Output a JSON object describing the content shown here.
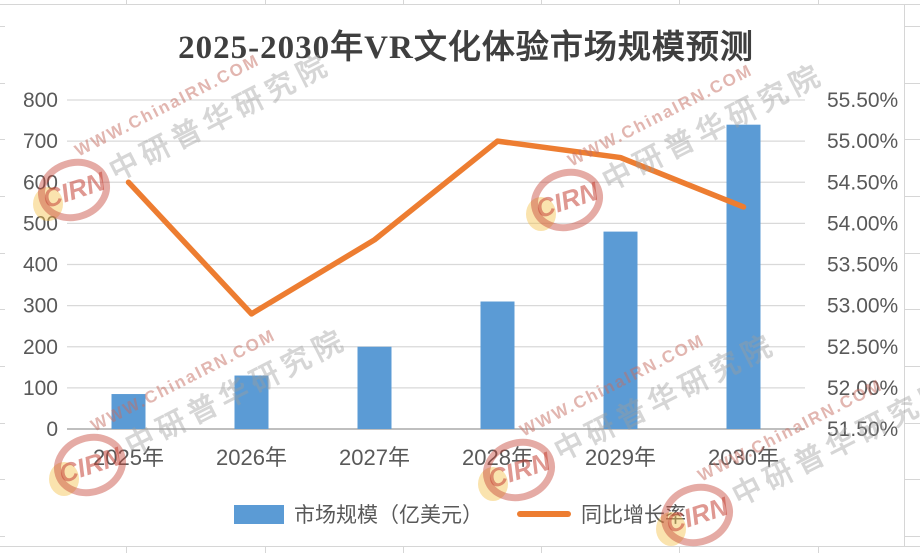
{
  "title": "2025-2030年VR文化体验市场规模预测",
  "legend": {
    "bar_label": "市场规模（亿美元）",
    "line_label": "同比增长率"
  },
  "watermark": {
    "logo_text": "CIRN",
    "line1": "WWW.ChinaIRN.COM",
    "line2": "中研普华研究院"
  },
  "chart_data": {
    "type": "bar+line",
    "title": "2025-2030年VR文化体验市场规模预测",
    "categories": [
      "2025年",
      "2026年",
      "2027年",
      "2028年",
      "2029年",
      "2030年"
    ],
    "series": [
      {
        "name": "市场规模（亿美元）",
        "type": "bar",
        "axis": "left",
        "color": "#5B9BD5",
        "values": [
          85,
          130,
          200,
          310,
          480,
          740
        ]
      },
      {
        "name": "同比增长率",
        "type": "line",
        "axis": "right",
        "color": "#ED7D31",
        "values_percent": [
          54.5,
          52.9,
          53.8,
          55.0,
          54.8,
          54.2
        ]
      }
    ],
    "left_axis": {
      "min": 0,
      "max": 800,
      "step": 100,
      "ticks": [
        "800",
        "700",
        "600",
        "500",
        "400",
        "300",
        "200",
        "100",
        "0"
      ]
    },
    "right_axis": {
      "min": 51.5,
      "max": 55.5,
      "step": 0.5,
      "ticks": [
        "55.50%",
        "55.00%",
        "54.50%",
        "54.00%",
        "53.50%",
        "53.00%",
        "52.50%",
        "52.00%",
        "51.50%"
      ]
    },
    "grid": true,
    "legend_position": "bottom"
  },
  "colors": {
    "bar": "#5B9BD5",
    "line": "#ED7D31",
    "grid": "#D9D9D9",
    "axis_line": "#BFBFBF",
    "axis_text": "#595959",
    "title_text": "#3F3F3F",
    "watermark_red": "#C64438",
    "watermark_yellow": "#F3C14B"
  }
}
